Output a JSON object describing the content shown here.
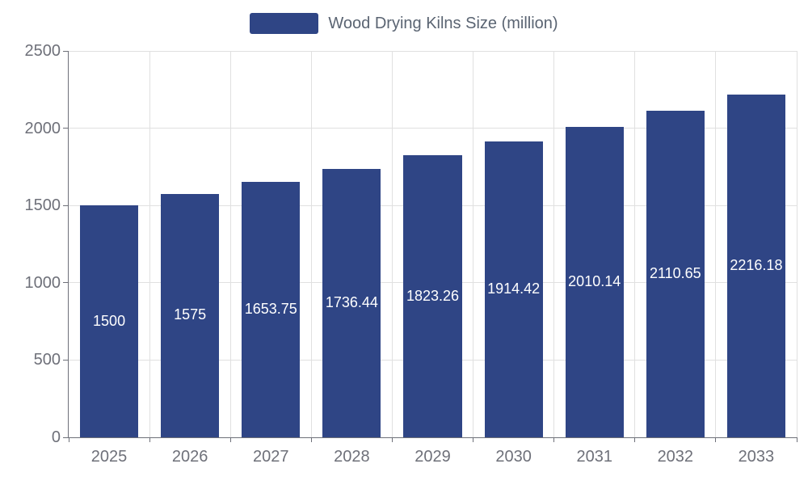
{
  "legend": {
    "label": "Wood Drying Kilns Size (million)"
  },
  "chart_data": {
    "type": "bar",
    "title": "Wood Drying Kilns Size (million)",
    "categories": [
      "2025",
      "2026",
      "2027",
      "2028",
      "2029",
      "2030",
      "2031",
      "2032",
      "2033"
    ],
    "values": [
      1500,
      1575,
      1653.75,
      1736.44,
      1823.26,
      1914.42,
      2010.14,
      2110.65,
      2216.18
    ],
    "value_labels": [
      "1500",
      "1575",
      "1653.75",
      "1736.44",
      "1823.26",
      "1914.42",
      "2010.14",
      "2110.65",
      "2216.18"
    ],
    "xlabel": "",
    "ylabel": "",
    "ylim": [
      0,
      2500
    ],
    "y_ticks": [
      0,
      500,
      1000,
      1500,
      2000,
      2500
    ],
    "bar_color": "#2F4585",
    "value_label_color": "#ffffff",
    "grid": true,
    "legend_position": "top",
    "value_label_position": "inside-center"
  }
}
